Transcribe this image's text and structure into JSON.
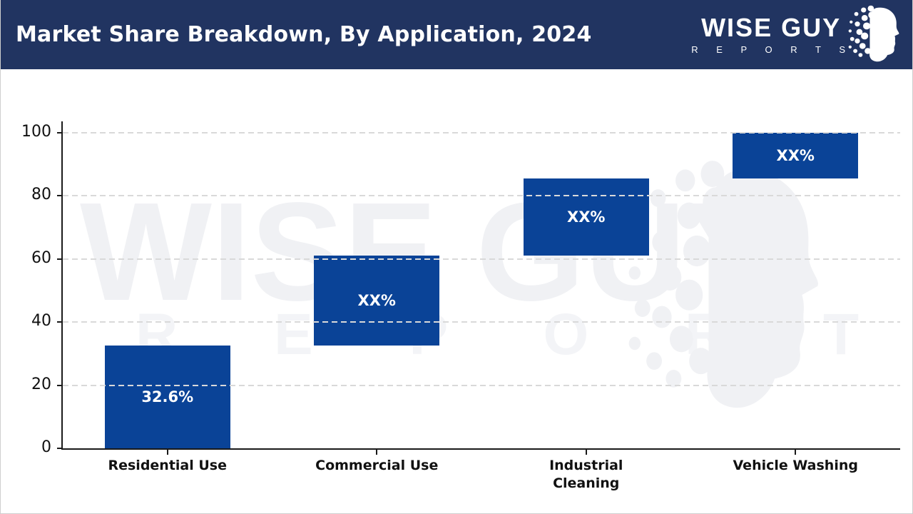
{
  "header": {
    "title": "Market Share Breakdown, By Application, 2024",
    "logo": {
      "line1": "WISE GUY",
      "line2": "R E P O R T S"
    }
  },
  "watermark": {
    "line1": "WISE GUY",
    "line2": "R E P O R T S"
  },
  "colors": {
    "header_bg": "#213461",
    "bar_fill": "#0a4397",
    "bar_label_text": "#ffffff",
    "grid_line": "#d9d9d9",
    "axis_line": "#1a1a1a",
    "watermark": "#f0f1f4"
  },
  "chart_data": {
    "type": "bar",
    "subtype": "waterfall",
    "title": "Market Share Breakdown, By Application, 2024",
    "categories": [
      "Residential Use",
      "Commercial Use",
      "Industrial Cleaning",
      "Vehicle Washing"
    ],
    "category_display": [
      "Residential Use",
      "Commercial Use",
      "Industrial\nCleaning",
      "Vehicle Washing"
    ],
    "segments": [
      {
        "category": "Residential Use",
        "start": 0,
        "end": 32.6,
        "value": 32.6,
        "label": "32.6%"
      },
      {
        "category": "Commercial Use",
        "start": 32.6,
        "end": 61.0,
        "value": 28.4,
        "label": "XX%"
      },
      {
        "category": "Industrial Cleaning",
        "start": 61.0,
        "end": 85.5,
        "value": 24.5,
        "label": "XX%"
      },
      {
        "category": "Vehicle Washing",
        "start": 85.5,
        "end": 100.0,
        "value": 14.5,
        "label": "XX%"
      }
    ],
    "yticks": [
      0,
      20,
      40,
      60,
      80,
      100
    ],
    "ylim": [
      0,
      103
    ],
    "xlabel": "",
    "ylabel": "",
    "grid": "horizontal-dashed",
    "legend": "none"
  }
}
